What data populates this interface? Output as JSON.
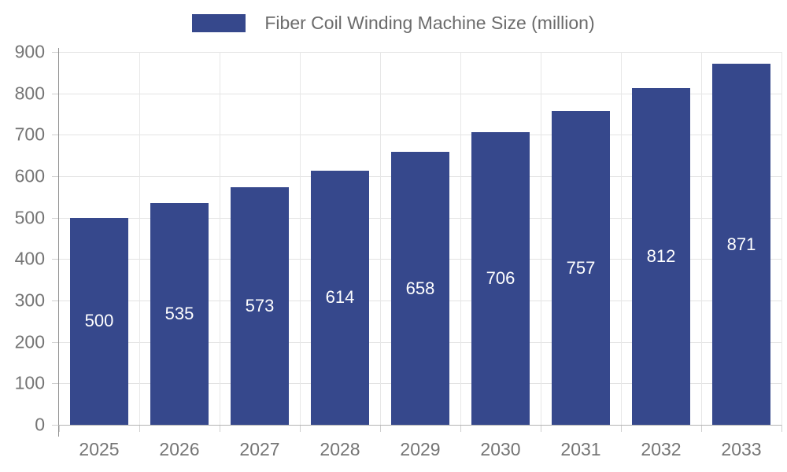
{
  "chart_data": {
    "type": "bar",
    "title": "Fiber Coil Winding Machine Size (million)",
    "categories": [
      "2025",
      "2026",
      "2027",
      "2028",
      "2029",
      "2030",
      "2031",
      "2032",
      "2033"
    ],
    "values": [
      500,
      535,
      573,
      614,
      658,
      706,
      757,
      812,
      871
    ],
    "xlabel": "",
    "ylabel": "",
    "ylim": [
      0,
      900
    ],
    "ytick_step": 100,
    "grid": true,
    "legend_position": "top-center",
    "bar_labels_inside": true
  },
  "colors": {
    "bar": "#36488C",
    "bar_label_text": "#ffffff",
    "axis_text": "#757575",
    "legend_text": "#6b6b6b",
    "gridline": "#e3e3e3",
    "y_spine": "#8f8f8f",
    "x_spine": "#b3b3b3",
    "tick": "#cfcfcf",
    "background": "#ffffff"
  }
}
